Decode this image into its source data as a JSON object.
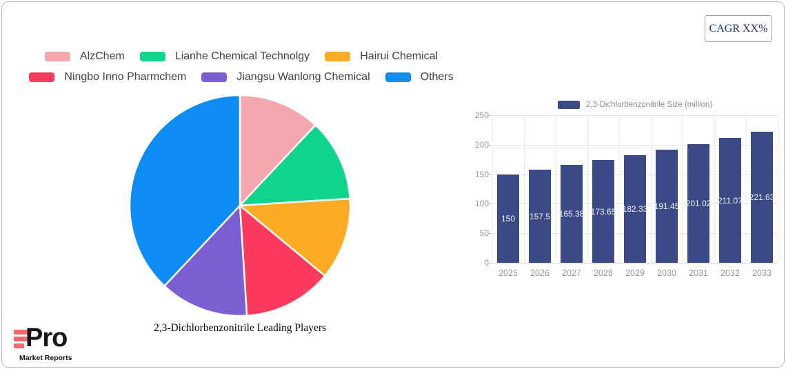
{
  "badge": {
    "cagr_label": "CAGR XX%"
  },
  "logo": {
    "name": "Pro",
    "tagline": "Market Reports"
  },
  "chart_data": [
    {
      "type": "pie",
      "title": "2,3-Dichlorbenzonitrile Leading Players",
      "labels": [
        "AlzChem",
        "Lianhe Chemical Technolgy",
        "Hairui Chemical",
        "Ningbo Inno Pharmchem",
        "Jiangsu Wanlong Chemical",
        "Others"
      ],
      "values": [
        12,
        12,
        12,
        13,
        13,
        38
      ],
      "colors": [
        "#f5a6ae",
        "#10d38c",
        "#fbab24",
        "#fb3a5e",
        "#7b5ed1",
        "#0e8cf5"
      ],
      "start_angle_deg": 0,
      "direction": "clockwise",
      "legend_position": "top",
      "slice_separator_color": "#ffffff"
    },
    {
      "type": "bar",
      "legend": "2,3-Dichlorbenzonitrile Size (million)",
      "categories": [
        "2025",
        "2026",
        "2027",
        "2028",
        "2029",
        "2030",
        "2031",
        "2032",
        "2033"
      ],
      "values": [
        150,
        157.5,
        165.38,
        173.65,
        182.33,
        191.45,
        201.02,
        211.07,
        221.63
      ],
      "value_labels": [
        "150",
        "157.5",
        "165.38",
        "173.65",
        "182.33",
        "191.45",
        "201.02",
        "211.07",
        "221.63"
      ],
      "bar_color": "#3b4a87",
      "ylim": [
        0,
        250
      ],
      "yticks": [
        0,
        50,
        100,
        150,
        200,
        250
      ],
      "grid": true,
      "value_label_position": "inside-center"
    }
  ]
}
